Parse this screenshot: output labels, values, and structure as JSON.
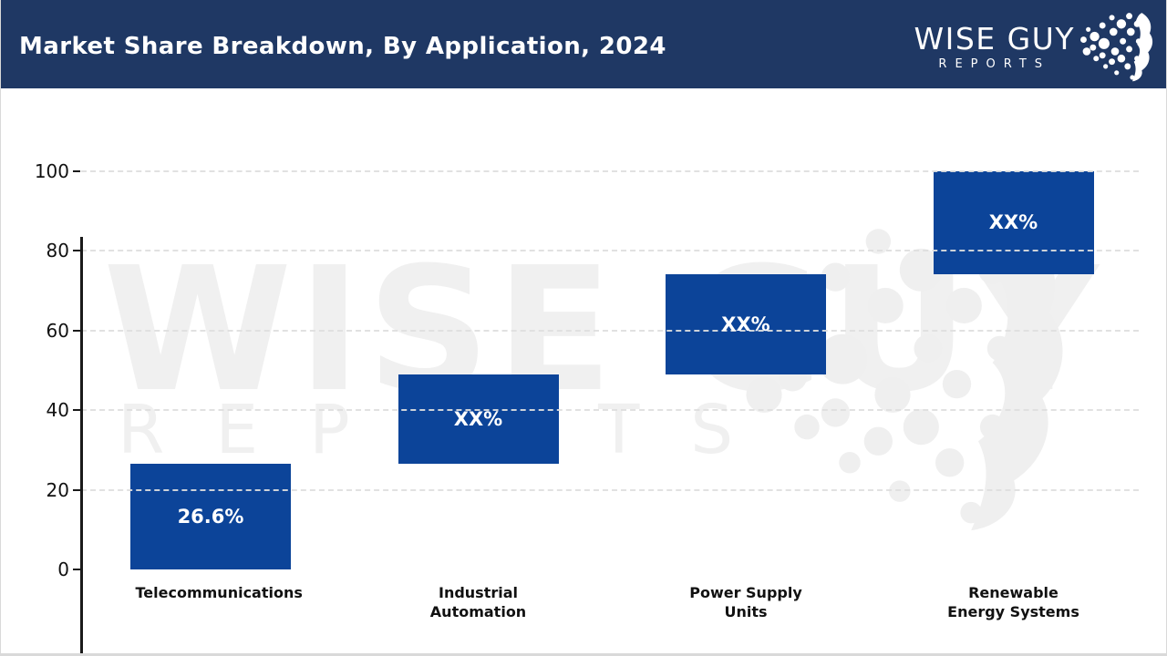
{
  "header": {
    "title": "Market Share Breakdown, By Application, 2024",
    "logo_line1": "WISE GUY",
    "logo_line2": "REPORTS"
  },
  "watermark": {
    "line1": "WISE GUY",
    "line2": "REPORTS"
  },
  "chart_data": {
    "type": "bar",
    "variant": "floating-waterfall",
    "title": "Market Share Breakdown, By Application, 2024",
    "xlabel": "",
    "ylabel": "",
    "categories": [
      "Telecommunications",
      "Industrial Automation",
      "Power Supply Units",
      "Renewable Energy Systems"
    ],
    "segments": [
      {
        "category": "Telecommunications",
        "start": 0,
        "end": 26.6,
        "label": "26.6%"
      },
      {
        "category": "Industrial Automation",
        "start": 26.6,
        "end": 49,
        "label": "XX%"
      },
      {
        "category": "Power Supply Units",
        "start": 49,
        "end": 74,
        "label": "XX%"
      },
      {
        "category": "Renewable Energy Systems",
        "start": 74,
        "end": 100,
        "label": "XX%"
      }
    ],
    "ylim": [
      0,
      100
    ],
    "yticks": [
      0,
      20,
      40,
      60,
      80,
      100
    ],
    "grid": "horizontal-dashed",
    "legend": "none",
    "colors": {
      "bar": "#0c4499",
      "bar_label_text": "#ffffff",
      "header_background": "#1f3864",
      "header_text": "#ffffff",
      "axis": "#1a1a1a",
      "gridline": "#dedede",
      "watermark": "#f0f0f0",
      "plot_background": "#ffffff"
    }
  }
}
